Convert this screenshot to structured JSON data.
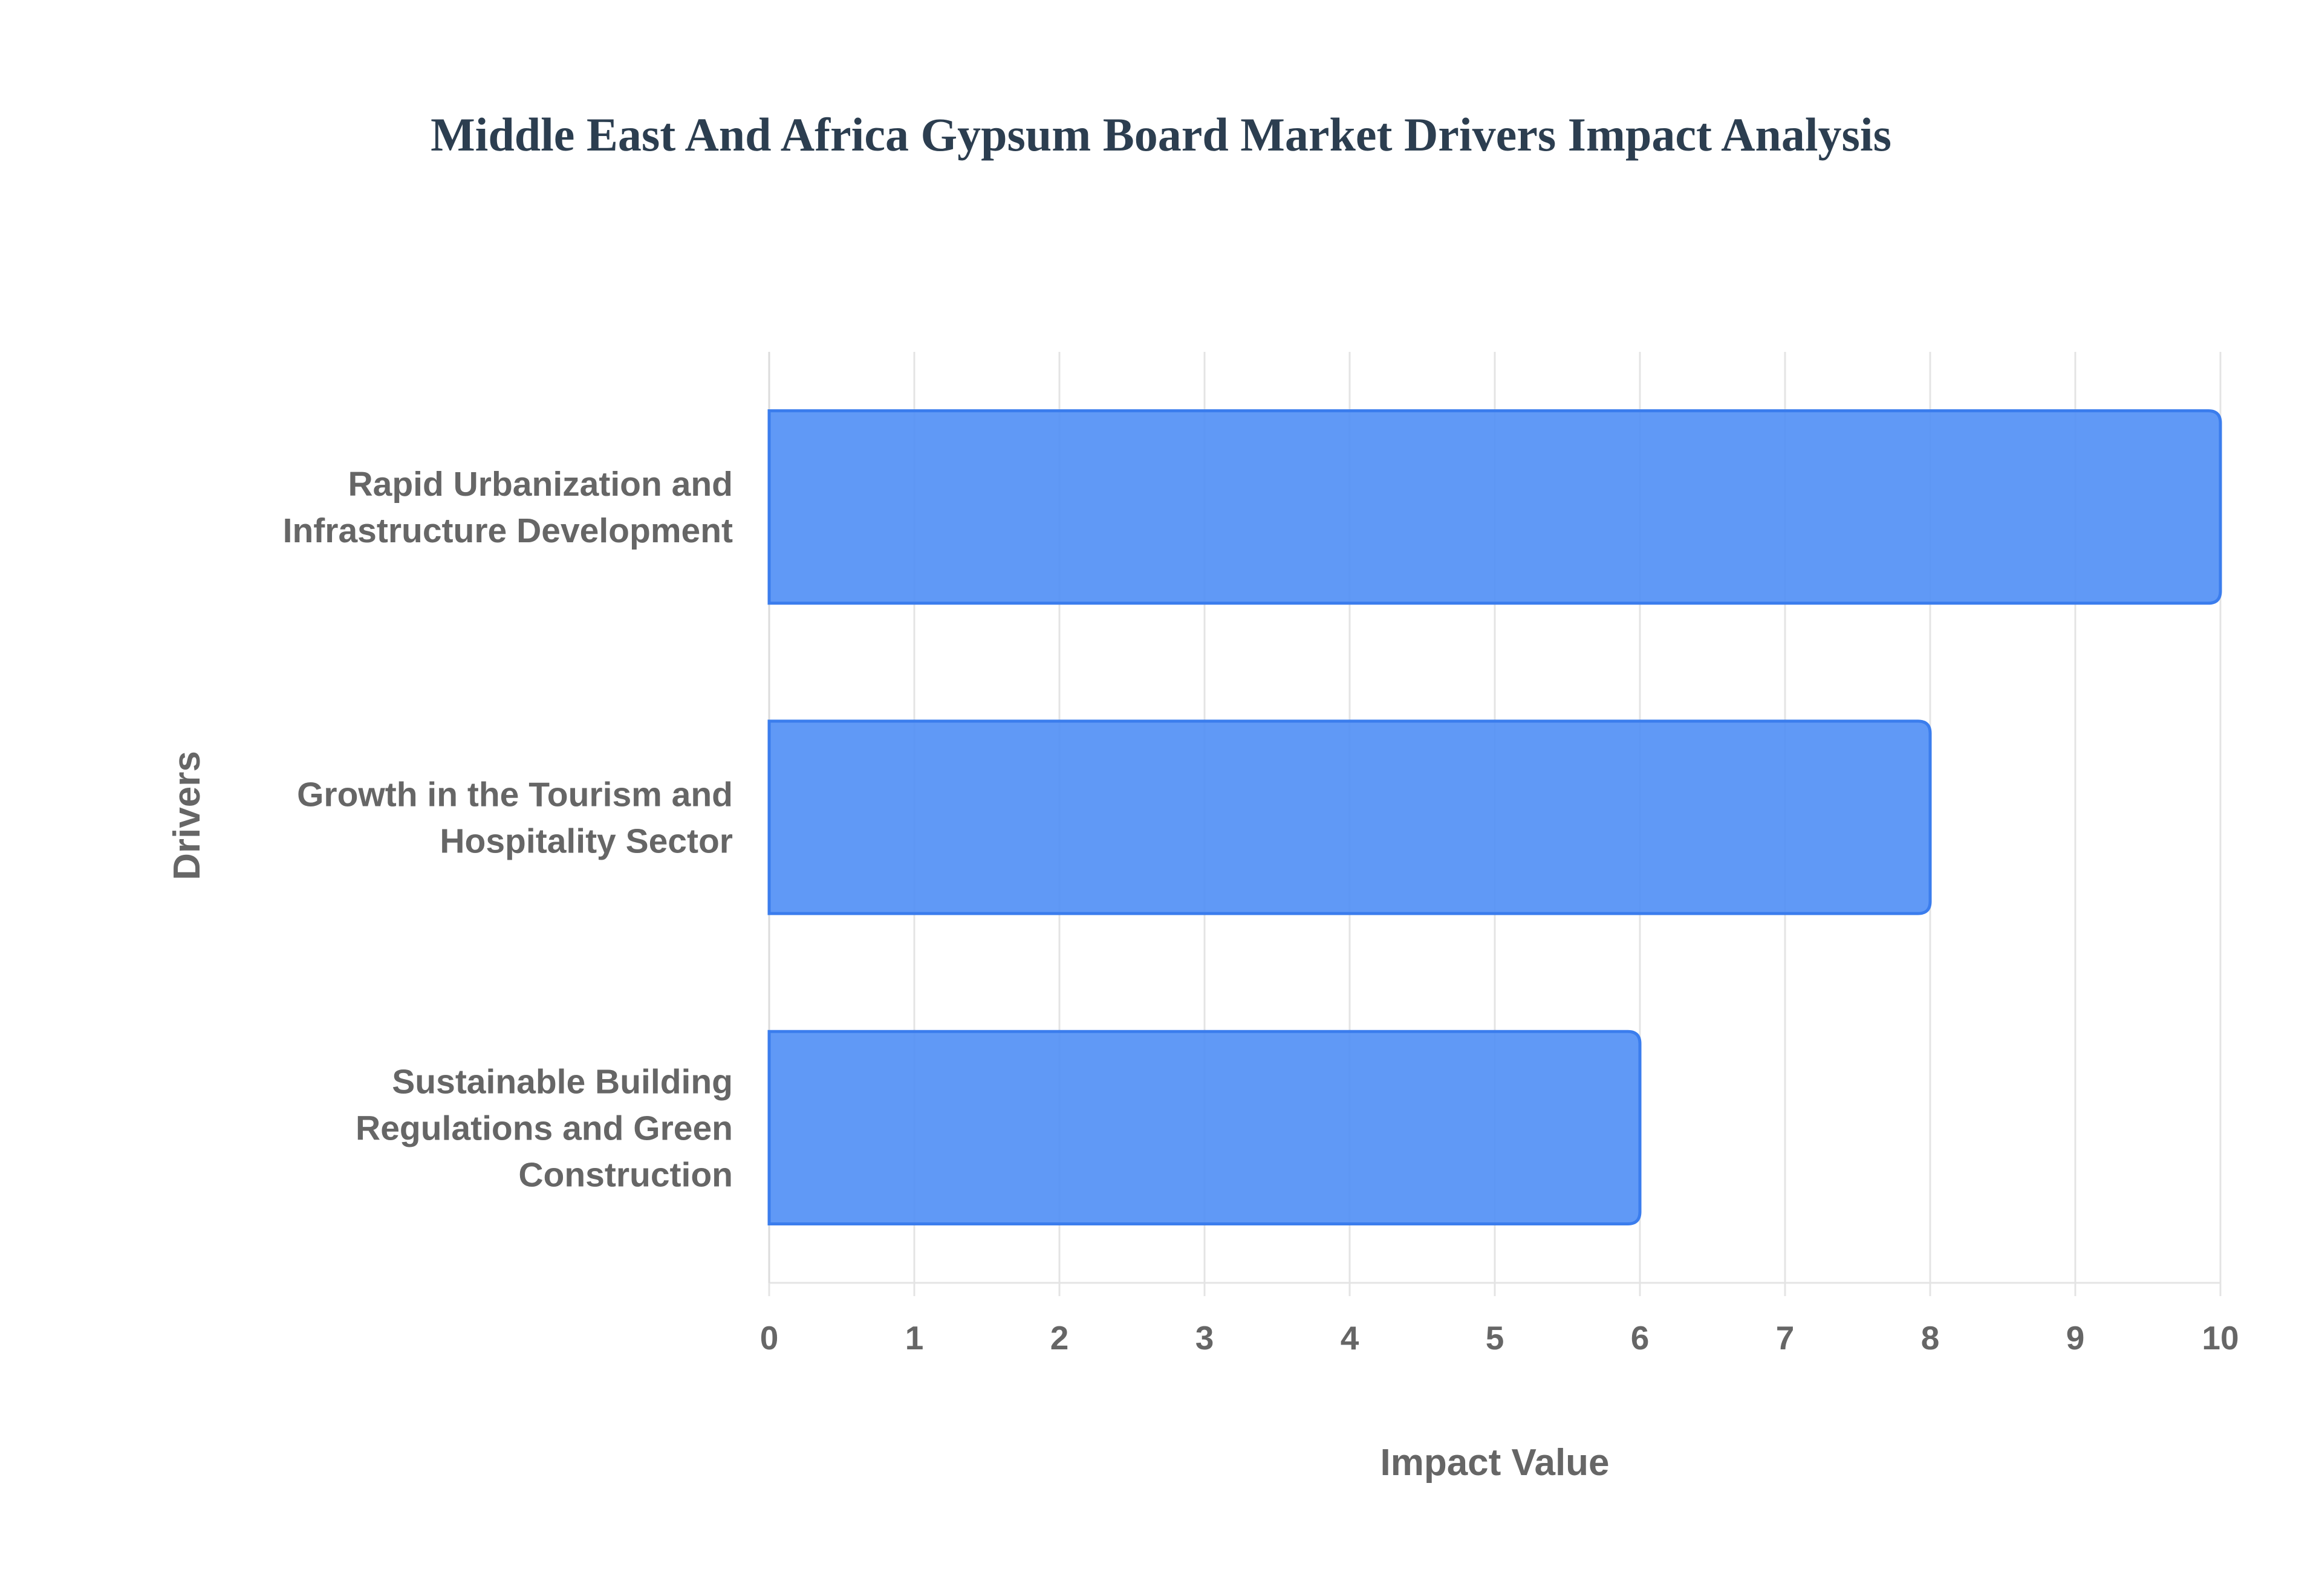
{
  "chart_data": {
    "type": "bar",
    "orientation": "horizontal",
    "title": "Middle East And Africa Gypsum Board Market Drivers Impact Analysis",
    "xlabel": "Impact Value",
    "ylabel": "Drivers",
    "categories": [
      [
        "Rapid Urbanization and",
        "Infrastructure Development"
      ],
      [
        "Growth in the Tourism and",
        "Hospitality Sector"
      ],
      [
        "Sustainable Building",
        "Regulations and Green",
        "Construction"
      ]
    ],
    "values": [
      10,
      8,
      6
    ],
    "xlim": [
      0,
      10
    ],
    "xticks": [
      "0",
      "1",
      "2",
      "3",
      "4",
      "5",
      "6",
      "7",
      "8",
      "9",
      "10"
    ],
    "grid": true,
    "bar_color": "#4f8ef5",
    "bar_border_color": "#3b7ded"
  }
}
